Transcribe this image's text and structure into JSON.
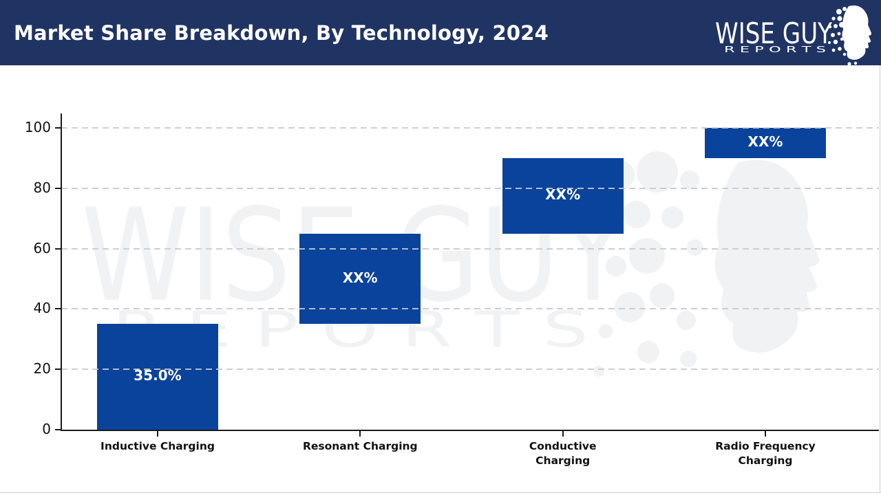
{
  "header": {
    "title": "Market Share Breakdown, By Technology, 2024",
    "bg_color": "#203464",
    "logo": {
      "wordmark": "WISE GUY",
      "subtext": "R E P O R T S",
      "head_icon": "dotted-face-profile-icon",
      "color": "#ffffff"
    }
  },
  "watermark": {
    "line1": "WISE GUY",
    "line2": "R E P O R T S",
    "head_icon": "dotted-face-profile-watermark",
    "color": "#f1f2f4"
  },
  "chart_data": {
    "type": "bar",
    "subtype": "floating-waterfall",
    "title": "Market Share Breakdown, By Technology, 2024",
    "categories": [
      "Inductive Charging",
      "Resonant Charging",
      "Conductive Charging",
      "Radio Frequency Charging"
    ],
    "tick_lines": [
      [
        "Inductive Charging"
      ],
      [
        "Resonant Charging"
      ],
      [
        "Conductive",
        "Charging"
      ],
      [
        "Radio Frequency",
        "Charging"
      ]
    ],
    "segments": [
      {
        "category": "Inductive Charging",
        "start": 0,
        "end": 35,
        "label": "35.0%"
      },
      {
        "category": "Resonant Charging",
        "start": 35,
        "end": 65,
        "label": "XX%"
      },
      {
        "category": "Conductive Charging",
        "start": 65,
        "end": 90,
        "label": "XX%"
      },
      {
        "category": "Radio Frequency Charging",
        "start": 90,
        "end": 100,
        "label": "XX%"
      }
    ],
    "yticks": [
      0,
      20,
      40,
      60,
      80,
      100
    ],
    "ylim": [
      0,
      105
    ],
    "xlabel": "",
    "ylabel": "",
    "legend": "none",
    "grid": "horizontal-dashed",
    "bar_color": "#09439b",
    "bar_label_color": "#ffffff",
    "axis_color": "#1a1a1a",
    "tick_label_color": "#111111"
  }
}
